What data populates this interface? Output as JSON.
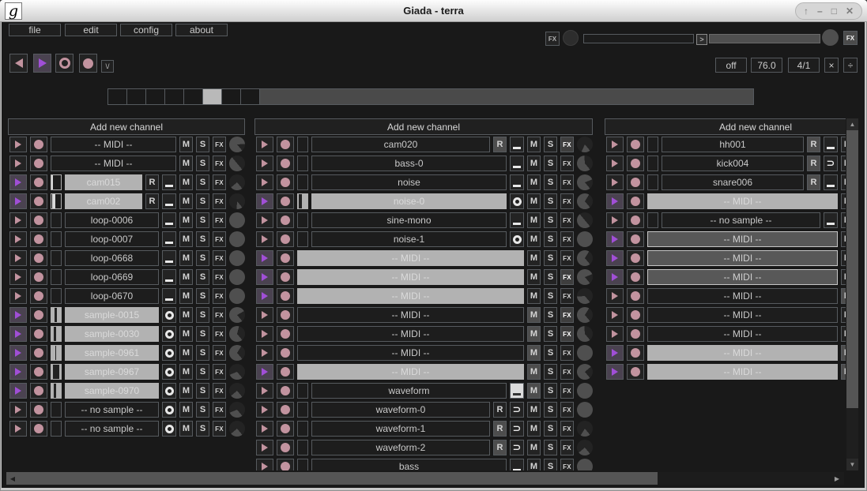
{
  "window": {
    "title": "Giada - terra",
    "logo_glyph": "g",
    "controls": {
      "rollup": "↑",
      "minimize": "–",
      "maximize": "□",
      "close": "✕"
    }
  },
  "menu": {
    "items": [
      "file",
      "edit",
      "config",
      "about"
    ]
  },
  "master_in": {
    "fx_label": "FX"
  },
  "master_out": {
    "fx_label": "FX"
  },
  "midi_monitor_label": ">",
  "transport": {
    "metronome_glyph": "\\/"
  },
  "tempo": {
    "quantizer": "off",
    "bpm": "76.0",
    "beats": "4/1",
    "multiply_label": "×",
    "divide_label": "÷"
  },
  "sequencer": {
    "beats": 8,
    "active_beat": 6
  },
  "channel_labels": {
    "mute": "M",
    "solo": "S",
    "fx": "FX",
    "record_actions": "R"
  },
  "icons": {
    "hook": "⊃",
    "up": "▲",
    "down": "▼",
    "left": "◀",
    "right": "▶"
  },
  "colors": {
    "pink": "#c2939f",
    "purple": "#a04fd6",
    "playing_bg": "#b2b2b2",
    "armed_bg": "#585858"
  },
  "columns": [
    {
      "header": "Add new channel",
      "channels": [
        {
          "name": "-- MIDI --",
          "kind": "midi",
          "state": "off",
          "volume": 0.85
        },
        {
          "name": "-- MIDI --",
          "kind": "midi",
          "state": "off",
          "volume": 0.5
        },
        {
          "name": "cam015",
          "kind": "sample",
          "state": "playing",
          "r": "off",
          "mode": "dash",
          "volume": 0.25,
          "meter": {
            "light": false,
            "from": 0,
            "to": 0.18
          }
        },
        {
          "name": "cam002",
          "kind": "sample",
          "state": "playing",
          "r": "off",
          "mode": "dash",
          "volume": 0.12,
          "meter": {
            "light": false,
            "from": 0.12,
            "to": 0.38
          }
        },
        {
          "name": "loop-0006",
          "kind": "sample",
          "state": "off",
          "mode": "dash",
          "volume": 1
        },
        {
          "name": "loop-0007",
          "kind": "sample",
          "state": "off",
          "mode": "dash",
          "volume": 1
        },
        {
          "name": "loop-0668",
          "kind": "sample",
          "state": "off",
          "mode": "dash",
          "volume": 1
        },
        {
          "name": "loop-0669",
          "kind": "sample",
          "state": "off",
          "mode": "dash",
          "volume": 1
        },
        {
          "name": "loop-0670",
          "kind": "sample",
          "state": "off",
          "mode": "dash",
          "volume": 1
        },
        {
          "name": "sample-0015",
          "kind": "sample",
          "state": "playing",
          "mode": "ring",
          "volume": 0.78,
          "meter": {
            "light": true,
            "from": 0.35,
            "to": 0.62
          }
        },
        {
          "name": "sample-0030",
          "kind": "sample",
          "state": "playing",
          "mode": "ring",
          "volume": 0.65,
          "meter": {
            "light": true,
            "from": 0.28,
            "to": 0.5
          }
        },
        {
          "name": "sample-0961",
          "kind": "sample",
          "state": "playing",
          "mode": "ring",
          "volume": 0.7,
          "meter": {
            "light": true,
            "from": 0.42,
            "to": 0.48
          }
        },
        {
          "name": "sample-0967",
          "kind": "sample",
          "state": "playing",
          "mode": "ring",
          "volume": 0.3,
          "meter": {
            "light": true,
            "from": 0.15,
            "to": 0.8
          }
        },
        {
          "name": "sample-0970",
          "kind": "sample",
          "state": "playing",
          "mode": "ring",
          "volume": 0.25,
          "meter": {
            "light": true,
            "from": 0.28,
            "to": 0.48
          }
        },
        {
          "name": "-- no sample --",
          "kind": "sample",
          "state": "off",
          "mode": "ring",
          "volume": 0.3
        },
        {
          "name": "-- no sample --",
          "kind": "sample",
          "state": "off",
          "mode": "ring",
          "volume": 0.25
        }
      ]
    },
    {
      "header": "Add new channel",
      "channels": [
        {
          "name": "cam020",
          "kind": "sample",
          "state": "off",
          "r": "on",
          "mode": "dash",
          "fx_on": true,
          "volume": 0.18
        },
        {
          "name": "bass-0",
          "kind": "sample",
          "state": "off",
          "mode": "dash",
          "volume": 0.6
        },
        {
          "name": "noise",
          "kind": "sample",
          "state": "off",
          "mode": "dash",
          "volume": 0.8
        },
        {
          "name": "noise-0",
          "kind": "sample",
          "state": "playing",
          "mode": "ring",
          "volume": 0.7,
          "meter": {
            "light": true,
            "from": 0.12,
            "to": 0.4
          }
        },
        {
          "name": "sine-mono",
          "kind": "sample",
          "state": "off",
          "mode": "dash",
          "volume": 0.5
        },
        {
          "name": "noise-1",
          "kind": "sample",
          "state": "off",
          "mode": "ring",
          "volume": 1
        },
        {
          "name": "-- MIDI --",
          "kind": "midi",
          "state": "playing",
          "volume": 0.7
        },
        {
          "name": "-- MIDI --",
          "kind": "midi",
          "state": "playing",
          "fx_on": true,
          "volume": 0.8
        },
        {
          "name": "-- MIDI --",
          "kind": "midi",
          "state": "playing",
          "volume": 0.35
        },
        {
          "name": "-- MIDI --",
          "kind": "midi",
          "state": "off",
          "mute_on": true,
          "fx_on": true,
          "volume": 0.7
        },
        {
          "name": "-- MIDI --",
          "kind": "midi",
          "state": "off",
          "mute_on": true,
          "fx_on": true,
          "volume": 0.6
        },
        {
          "name": "-- MIDI --",
          "kind": "midi",
          "state": "off",
          "mute_on": true,
          "volume": 1
        },
        {
          "name": "-- MIDI --",
          "kind": "midi",
          "state": "playing",
          "mute_on": true,
          "volume": 0.75
        },
        {
          "name": "waveform",
          "kind": "sample",
          "state": "off",
          "mode": "dash-on",
          "mute_on": true,
          "volume": 1
        },
        {
          "name": "waveform-0",
          "kind": "sample",
          "state": "off",
          "r": "off",
          "mode": "hook",
          "volume": 1
        },
        {
          "name": "waveform-1",
          "kind": "sample",
          "state": "off",
          "r": "on",
          "mode": "hook",
          "volume": 0.2
        },
        {
          "name": "waveform-2",
          "kind": "sample",
          "state": "off",
          "r": "on",
          "mode": "hook",
          "volume": 0.25
        },
        {
          "name": "bass",
          "kind": "sample",
          "state": "off",
          "mode": "dash",
          "volume": 1
        }
      ]
    },
    {
      "header": "Add new channel",
      "channels": [
        {
          "name": "hh001",
          "kind": "sample",
          "state": "off",
          "r": "on",
          "mode": "dash",
          "volume": 1
        },
        {
          "name": "kick004",
          "kind": "sample",
          "state": "off",
          "r": "on",
          "mode": "hook",
          "volume": 1
        },
        {
          "name": "snare006",
          "kind": "sample",
          "state": "off",
          "r": "on",
          "mode": "dash",
          "volume": 1
        },
        {
          "name": "-- MIDI --",
          "kind": "midi",
          "state": "playing",
          "volume": 1
        },
        {
          "name": "-- no sample --",
          "kind": "sample",
          "state": "off",
          "mode": "dash",
          "volume": 1
        },
        {
          "name": "-- MIDI --",
          "kind": "midi",
          "state": "armed",
          "volume": 1
        },
        {
          "name": "-- MIDI --",
          "kind": "midi",
          "state": "armed",
          "volume": 1
        },
        {
          "name": "-- MIDI --",
          "kind": "midi",
          "state": "armed",
          "volume": 1
        },
        {
          "name": "-- MIDI --",
          "kind": "midi",
          "state": "off",
          "mute_on": true,
          "volume": 1
        },
        {
          "name": "-- MIDI --",
          "kind": "midi",
          "state": "off",
          "volume": 1
        },
        {
          "name": "-- MIDI --",
          "kind": "midi",
          "state": "off",
          "volume": 1
        },
        {
          "name": "-- MIDI --",
          "kind": "midi",
          "state": "playing",
          "mute_on": true,
          "volume": 1
        },
        {
          "name": "-- MIDI --",
          "kind": "midi",
          "state": "playing",
          "mute_on": true,
          "volume": 1
        }
      ]
    }
  ]
}
